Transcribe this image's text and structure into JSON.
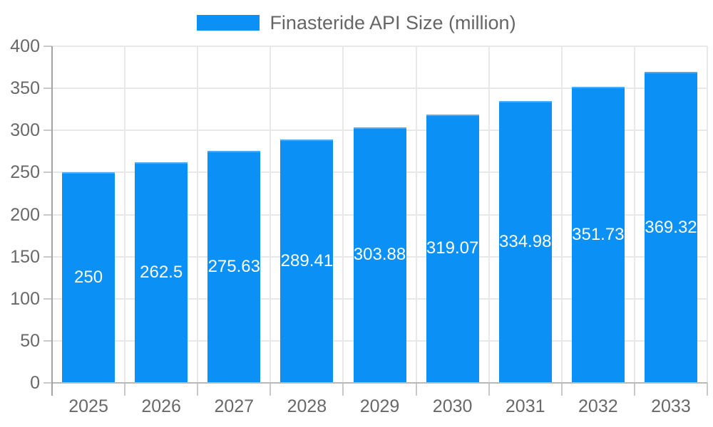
{
  "legend": {
    "label": "Finasteride API Size (million)"
  },
  "colors": {
    "bar": "#0b90f5",
    "bar_border": "#4daaf7",
    "grid": "#e8e8e8",
    "axis": "#a3a3a3",
    "baseline": "#b8b8b8",
    "tick": "#c9c9c9",
    "tick_label": "#696969",
    "legend_text": "#666666",
    "value_label": "#ffffff"
  },
  "chart_data": {
    "type": "bar",
    "title": "Finasteride API Size (million)",
    "legend_position": "top",
    "grid": true,
    "categories": [
      "2025",
      "2026",
      "2027",
      "2028",
      "2029",
      "2030",
      "2031",
      "2032",
      "2033"
    ],
    "values": [
      250,
      262.5,
      275.63,
      289.41,
      303.88,
      319.07,
      334.98,
      351.73,
      369.32
    ],
    "value_labels": [
      "250",
      "262.5",
      "275.63",
      "289.41",
      "303.88",
      "319.07",
      "334.98",
      "351.73",
      "369.32"
    ],
    "xlabel": "",
    "ylabel": "",
    "ylim": [
      0,
      400
    ],
    "ytick_step": 50,
    "ytick_labels": [
      "0",
      "50",
      "100",
      "150",
      "200",
      "250",
      "300",
      "350",
      "400"
    ]
  }
}
